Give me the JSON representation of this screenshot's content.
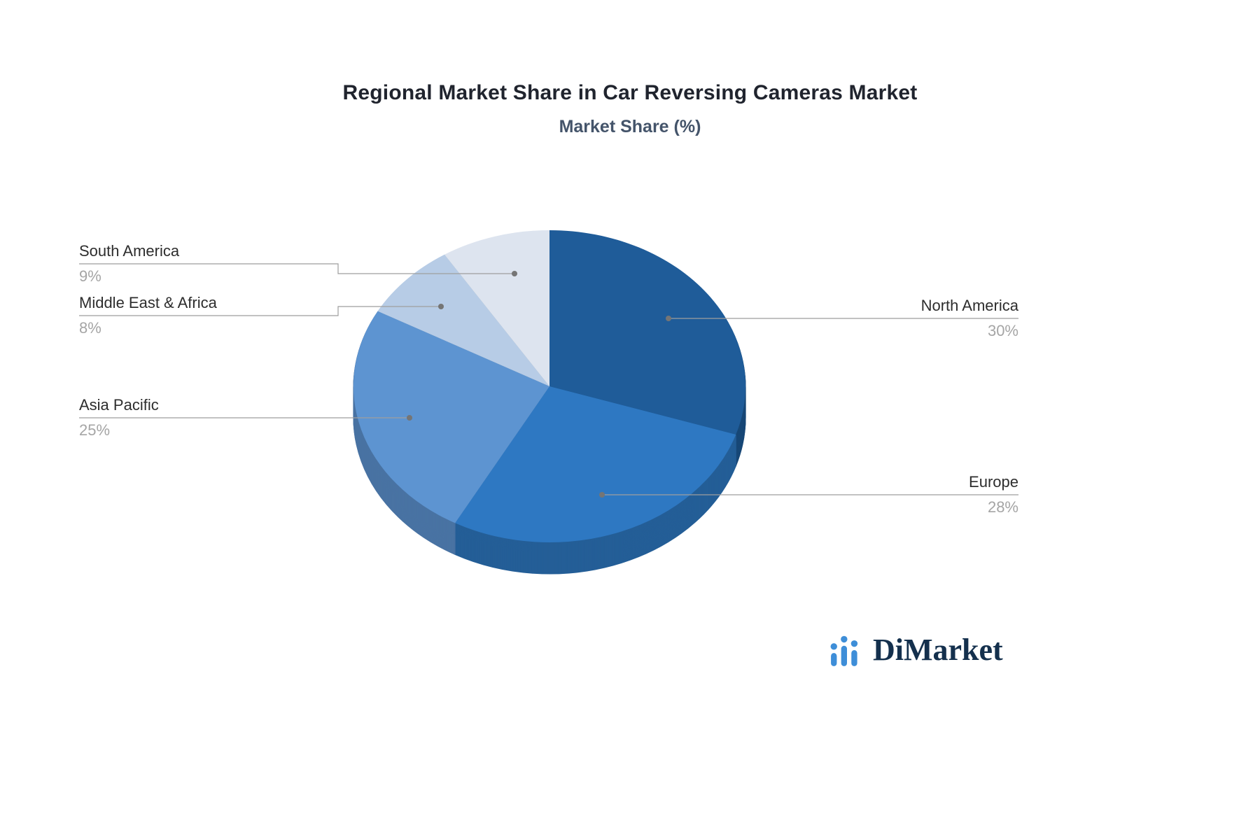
{
  "title": "Regional Market Share in Car Reversing Cameras Market",
  "subtitle": "Market Share (%)",
  "chart_data": {
    "type": "pie",
    "title": "Regional Market Share in Car Reversing Cameras Market",
    "subtitle": "Market Share (%)",
    "unit": "%",
    "direction": "clockwise",
    "start_angle_deg": 0,
    "style": "3d-pie",
    "legend": "none",
    "slices": [
      {
        "label": "North America",
        "value": 30,
        "pct_label": "30%",
        "color": "#1f5c99"
      },
      {
        "label": "Europe",
        "value": 28,
        "pct_label": "28%",
        "color": "#2e78c2"
      },
      {
        "label": "Asia Pacific",
        "value": 25,
        "pct_label": "25%",
        "color": "#5d94d1"
      },
      {
        "label": "Middle East & Africa",
        "value": 8,
        "pct_label": "8%",
        "color": "#b7cce6"
      },
      {
        "label": "South America",
        "value": 9,
        "pct_label": "9%",
        "color": "#dde4ef"
      }
    ]
  },
  "colors": {
    "label_name": "#2d2d2d",
    "label_value": "#a5a5a5",
    "leader_line": "#9e9e9e",
    "subtitle": "#44546a"
  },
  "logo": {
    "text": "DiMarket",
    "icon": "bar-chart-icon",
    "text_color": "#14304d",
    "icon_color": "#3e8ed8"
  }
}
